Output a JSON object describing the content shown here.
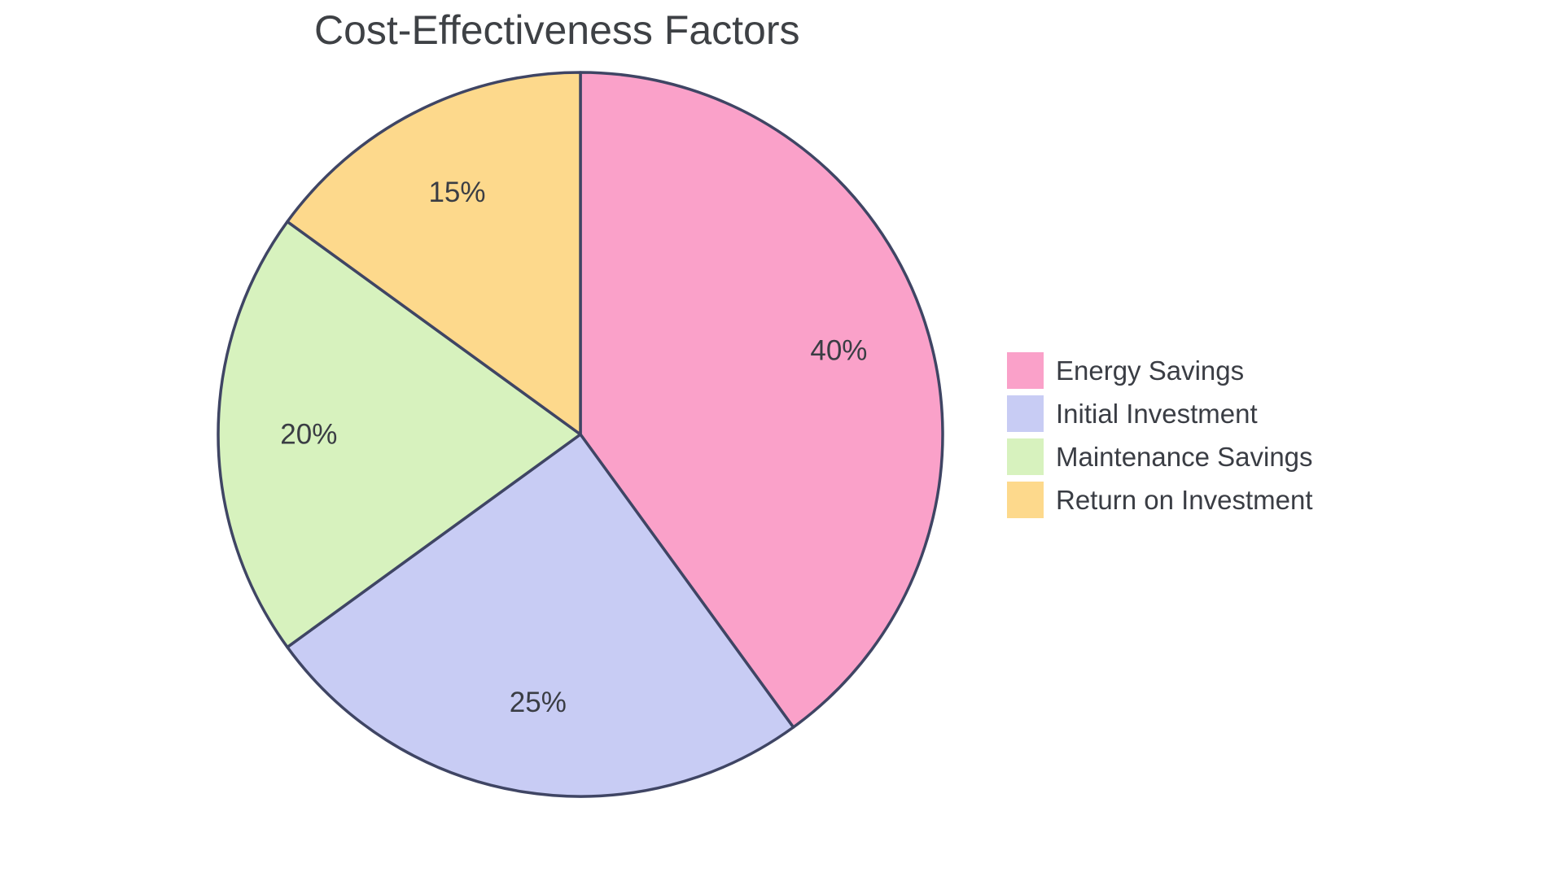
{
  "page": {
    "background": "#FFFFFF"
  },
  "chart_data": {
    "type": "pie",
    "title": "Cost-Effectiveness Factors",
    "labels": [
      "Energy Savings",
      "Initial Investment",
      "Maintenance Savings",
      "Return on Investment"
    ],
    "values": [
      40,
      25,
      20,
      15
    ],
    "value_labels": [
      "40%",
      "25%",
      "20%",
      "15%"
    ],
    "colors": [
      "#FAA1C9",
      "#C8CCF4",
      "#D7F2BE",
      "#FDD98C"
    ],
    "border_color": "#3F4564",
    "label_color": "#3A3D44",
    "title_color": "#3E4145",
    "legend_position": "right",
    "start_angle": "top",
    "direction": "clockwise"
  }
}
